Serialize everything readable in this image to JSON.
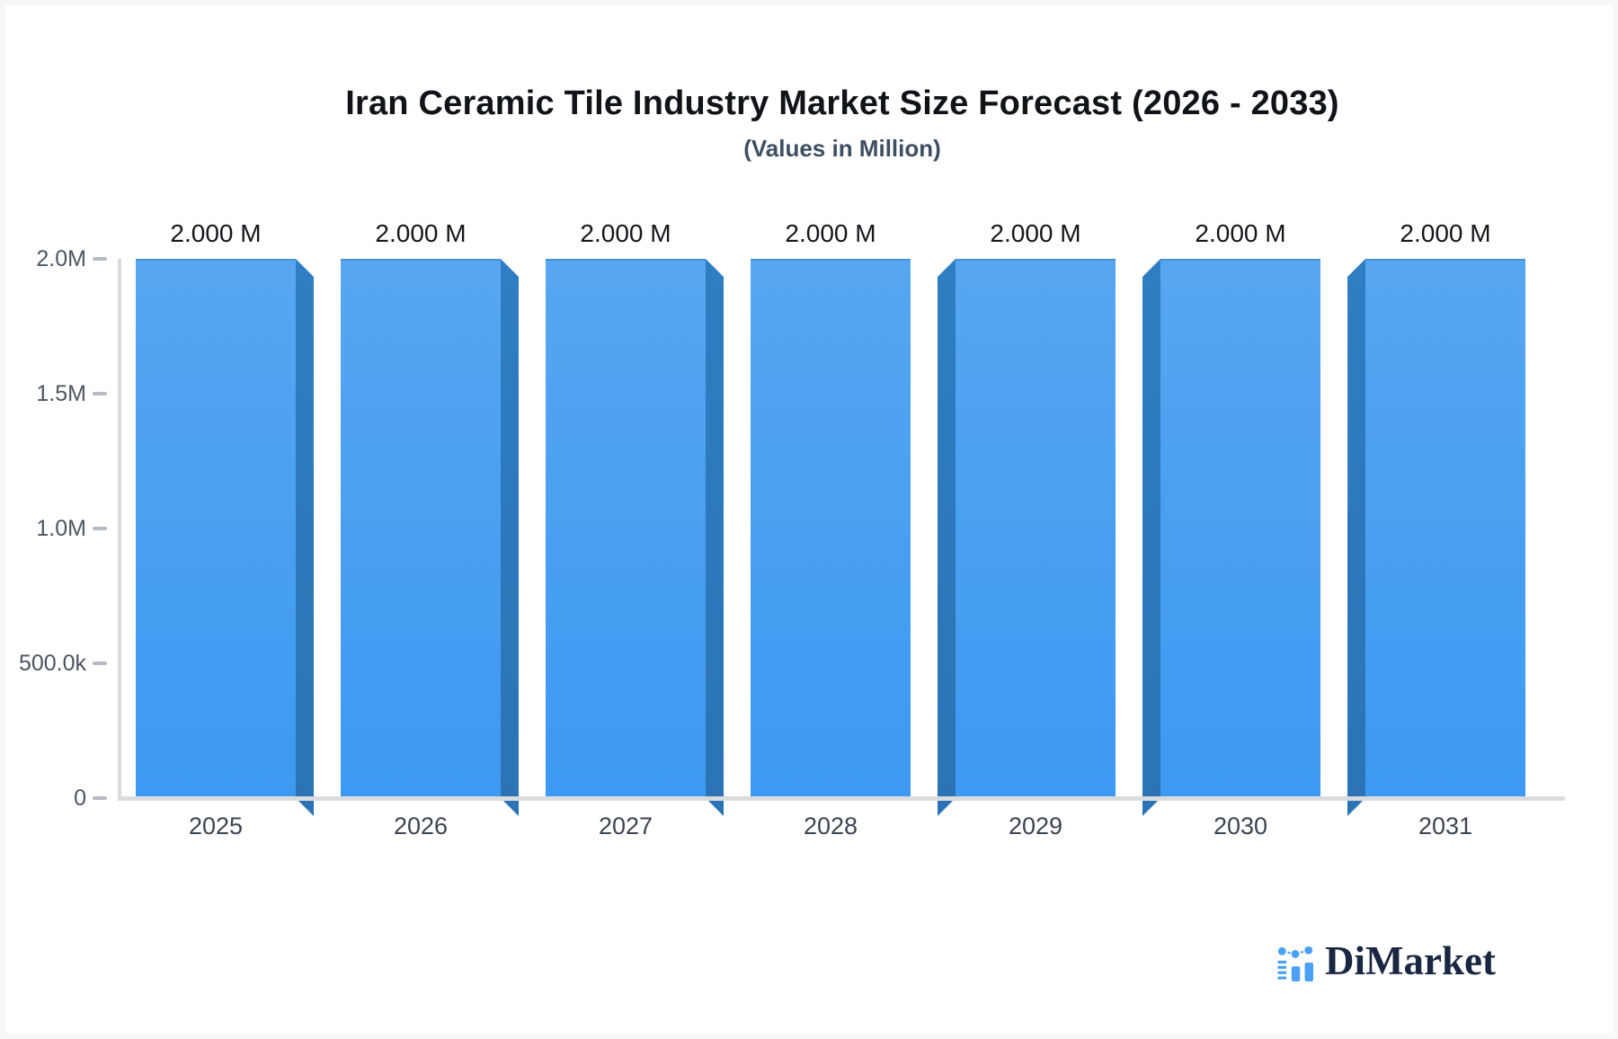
{
  "header": {
    "title": "Iran Ceramic Tile Industry Market Size Forecast (2026 - 2033)",
    "subtitle": "(Values in Million)"
  },
  "brand": {
    "name": "DiMarket",
    "icon": "mini-bar-line-chart-icon",
    "icon_color": "#4aa0f4",
    "text_color": "#1a2742"
  },
  "chart_data": {
    "type": "bar",
    "title": "Iran Ceramic Tile Industry Market Size Forecast (2026 - 2033)",
    "subtitle": "(Values in Million)",
    "categories": [
      "2025",
      "2026",
      "2027",
      "2028",
      "2029",
      "2030",
      "2031"
    ],
    "values": [
      2000000,
      2000000,
      2000000,
      2000000,
      2000000,
      2000000,
      2000000
    ],
    "value_labels": [
      "2.000 M",
      "2.000 M",
      "2.000 M",
      "2.000 M",
      "2.000 M",
      "2.000 M",
      "2.000 M"
    ],
    "unit": "Million",
    "xlabel": "",
    "ylabel": "",
    "ylim": [
      0,
      2000000
    ],
    "ytick_values": [
      0,
      500000,
      1000000,
      1500000,
      2000000
    ],
    "ytick_labels": [
      "0",
      "500.0k",
      "1.0M",
      "1.5M",
      "2.0M"
    ],
    "grid": false,
    "legend_position": "none",
    "style": "3d-perspective-bars",
    "colors": {
      "bar_front_top": "#57a7f0",
      "bar_front_bottom": "#3e99f2",
      "bar_side": "#2e7abf",
      "axis_line": "#d9dbdd",
      "tick_text": "#4d5661",
      "title_text": "#101419",
      "subtitle_text": "#3e4e63",
      "value_label_text": "#14171c"
    }
  }
}
